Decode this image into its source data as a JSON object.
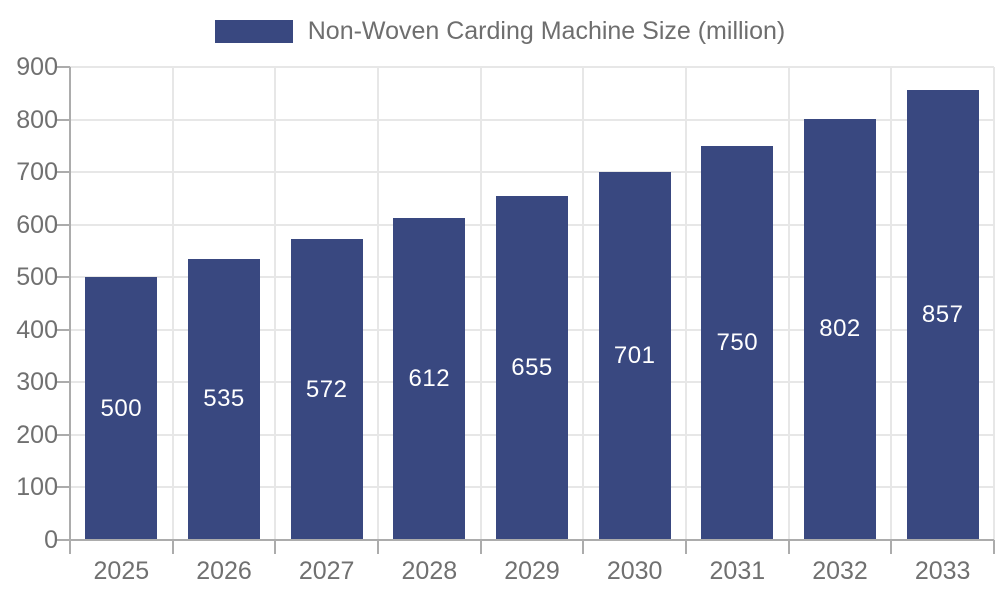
{
  "chart_data": {
    "type": "bar",
    "legend": "Non-Woven Carding Machine Size (million)",
    "categories": [
      "2025",
      "2026",
      "2027",
      "2028",
      "2029",
      "2030",
      "2031",
      "2032",
      "2033"
    ],
    "series": [
      {
        "name": "Non-Woven Carding Machine Size (million)",
        "values": [
          500,
          535,
          572,
          612,
          655,
          701,
          750,
          802,
          857
        ]
      }
    ],
    "value_labels": [
      "500",
      "535",
      "572",
      "612",
      "655",
      "701",
      "750",
      "802",
      "857"
    ],
    "title": "",
    "xlabel": "",
    "ylabel": "",
    "ylim": [
      0,
      900
    ],
    "yticks": [
      0,
      100,
      200,
      300,
      400,
      500,
      600,
      700,
      800,
      900
    ],
    "grid": "horizontal and vertical split lines on",
    "legend_position": "top-center",
    "colors": {
      "bar": "#394880",
      "grid_line": "#e7e7e7",
      "axis_line": "#acacac",
      "tick_text": "#707070",
      "legend_text": "#6e6e6e",
      "value_text": "#ffffff",
      "background": "#ffffff"
    }
  }
}
